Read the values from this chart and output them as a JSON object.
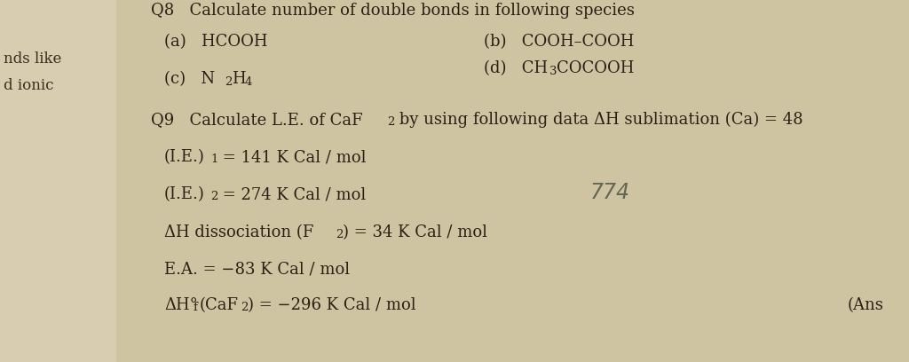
{
  "bg_color": "#cfc4a2",
  "left_text_color": "#3a2e1e",
  "main_text_color": "#2a2015",
  "fig_w": 10.24,
  "fig_h": 4.08,
  "dpi": 100,
  "left_text1": "nds like",
  "left_text2": "d ionic",
  "q8_title": "Q8   Calculate number of double bonds in following species",
  "q8a": "(a)   HCOOH",
  "q8b": "(b)   COOH–COOH",
  "q8c_pre": "(c)   N",
  "q8c_sub": "2",
  "q8c_mid": "H",
  "q8c_sub2": "4",
  "q8d_pre": "(d)   CH",
  "q8d_sub": "3",
  "q8d_post": "COCOOH",
  "q9_pre": "Q9   Calculate L.E. of CaF",
  "q9_sub": "2",
  "q9_post": " by using following data ΔH sublimation (Ca) = 48",
  "ie1_pre": "(I.E.)",
  "ie1_sub": "1",
  "ie1_post": " = 141 K Cal / mol",
  "ie2_pre": "(I.E.)",
  "ie2_sub": "2",
  "ie2_post": " = 274 K Cal / mol",
  "hw": "774",
  "dh_pre": "ΔH dissociation (F",
  "dh_sub": "2",
  "dh_post": ") = 34 K Cal / mol",
  "ea": "E.A. = −83 K Cal / mol",
  "dhf_pre": "ΔH°",
  "dhf_sub_f": "f",
  "dhf_mid": "(CaF",
  "dhf_sub2": "2",
  "dhf_post": ") = −296 K Cal / mol",
  "ans": "(Ans"
}
